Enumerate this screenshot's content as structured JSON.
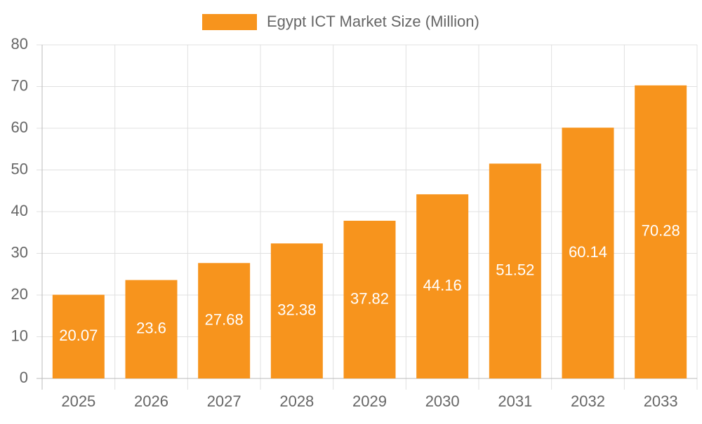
{
  "chart_data": {
    "type": "bar",
    "categories": [
      "2025",
      "2026",
      "2027",
      "2028",
      "2029",
      "2030",
      "2031",
      "2032",
      "2033"
    ],
    "series": [
      {
        "name": "Egypt ICT Market Size (Million)",
        "color": "#f7941d",
        "values": [
          20.07,
          23.6,
          27.68,
          32.38,
          37.82,
          44.16,
          51.52,
          60.14,
          70.28
        ]
      }
    ],
    "ylim": [
      0,
      80
    ],
    "yticks": [
      0,
      10,
      20,
      30,
      40,
      50,
      60,
      70,
      80
    ],
    "grid": true,
    "legend": "top"
  }
}
